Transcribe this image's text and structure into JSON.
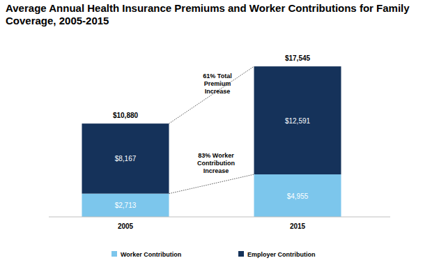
{
  "chart_data": {
    "type": "bar",
    "title": "Average Annual Health Insurance Premiums and Worker Contributions for Family Coverage, 2005-2015",
    "categories": [
      "2005",
      "2015"
    ],
    "stacked": true,
    "data_labels": true,
    "tick_labels": "x",
    "legend": "bottom",
    "ylim": [
      0,
      20000
    ],
    "series": [
      {
        "name": "Worker Contribution",
        "color": "#7cc6ec",
        "values": [
          2713,
          4955
        ],
        "value_labels": [
          "$2,713",
          "$4,955"
        ]
      },
      {
        "name": "Employer Contribution",
        "color": "#15325a",
        "values": [
          8167,
          12591
        ],
        "value_labels": [
          "$8,167",
          "$12,591"
        ]
      }
    ],
    "totals": [
      10880,
      17545
    ],
    "total_labels": [
      "$10,880",
      "$17,545"
    ],
    "annotations": [
      "61% Total Premium Increase",
      "83% Worker Contribution Increase"
    ]
  }
}
